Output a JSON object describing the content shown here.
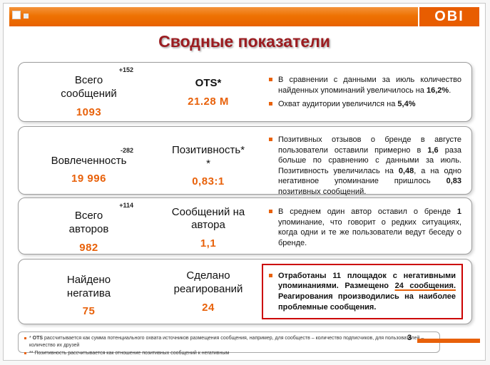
{
  "header": {
    "logo_text": "OBI"
  },
  "title": "Сводные показатели",
  "rows": [
    {
      "left": {
        "label": "Всего\nсообщений",
        "delta": "+152",
        "value": "1093"
      },
      "middle": {
        "label": "OTS*",
        "value": "21.28 М"
      },
      "bullets": [
        [
          {
            "t": "В сравнении с данными за июль количество найденных упоминаний увеличилось на "
          },
          {
            "t": "16,2%",
            "b": true
          },
          {
            "t": "."
          }
        ],
        [
          {
            "t": "Охват аудитории увеличился на "
          },
          {
            "t": "5,4%",
            "b": true
          }
        ]
      ]
    },
    {
      "left": {
        "label": "Вовлеченность",
        "delta": "-282",
        "value": "19 996"
      },
      "middle": {
        "label": "Позитивность*\n*",
        "value": "0,83:1"
      },
      "bullets": [
        [
          {
            "t": "Позитивных отзывов о бренде в августе пользователи оставили примерно в "
          },
          {
            "t": "1,6",
            "b": true
          },
          {
            "t": " раза больше по сравнению с данными за июль. Позитивность увеличилась на "
          },
          {
            "t": "0,48",
            "b": true
          },
          {
            "t": ", а на одно негативное упоминание пришлось "
          },
          {
            "t": "0,83",
            "b": true
          },
          {
            "t": " позитивных сообщений."
          }
        ]
      ]
    },
    {
      "left": {
        "label": "Всего\nавторов",
        "delta": "+114",
        "value": "982"
      },
      "middle": {
        "label": "Сообщений на\nавтора",
        "value": "1,1"
      },
      "bullets": [
        [
          {
            "t": "В среднем один автор оставил о бренде "
          },
          {
            "t": "1",
            "b": true
          },
          {
            "t": " упоминание, что говорит о редких ситуациях, когда одни и те же пользователи ведут беседу о бренде."
          }
        ]
      ]
    },
    {
      "left": {
        "label": "Найдено\nнегатива",
        "delta": "",
        "value": "75"
      },
      "middle": {
        "label": "Сделано\nреагирований",
        "value": "24"
      },
      "bullets": [
        [
          {
            "t": "Отработаны ",
            "b": true
          },
          {
            "t": "11",
            "b": true
          },
          {
            "t": " площадок с негативными упоминаниями. Размещено ",
            "b": true
          },
          {
            "t": "24 сообщения.",
            "b": true,
            "u": true
          },
          {
            "t": " Реагирования производились на наиболее проблемные сообщения.",
            "b": true
          }
        ]
      ]
    }
  ],
  "footnotes": [
    [
      {
        "t": "* "
      },
      {
        "t": "OTS",
        "b": true
      },
      {
        "t": " рассчитывается как сумма потенциального охвата источников размещения сообщения, например, для сообществ – количество подписчиков, для пользователей – количество их друзей"
      }
    ],
    [
      {
        "t": "** Позитивность рассчитывается как отношение позитивных сообщений к негативным"
      }
    ]
  ],
  "page_number": "3",
  "colors": {
    "accent": "#e8610a",
    "title": "#9b1c20",
    "highlight_border": "#cc0000"
  }
}
